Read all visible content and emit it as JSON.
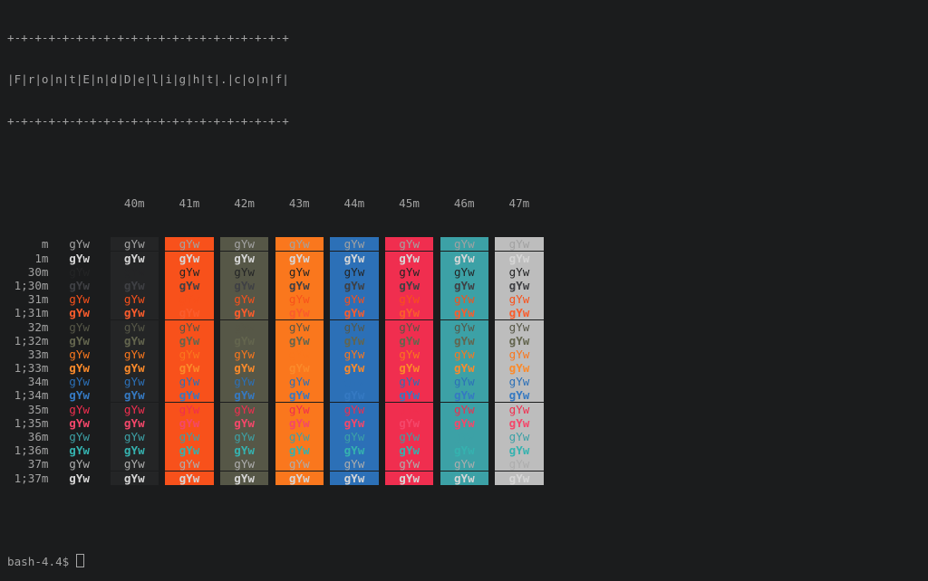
{
  "terminal": {
    "header": {
      "border": "+-+-+-+-+-+-+-+-+-+-+-+-+-+-+-+-+-+-+-+-+",
      "title_line": "|F|r|o|n|t|E|n|d|D|e|l|i|g|h|t|.|c|o|n|f|"
    },
    "col_headers": [
      "40m",
      "41m",
      "42m",
      "43m",
      "44m",
      "45m",
      "46m",
      "47m"
    ],
    "cell_text": "gYw",
    "rows": [
      {
        "label": "m",
        "fg": "default",
        "bold": false
      },
      {
        "label": "1m",
        "fg": "default_bold",
        "bold": true
      },
      {
        "label": "30m",
        "fg": "black",
        "bold": false
      },
      {
        "label": "1;30m",
        "fg": "bright_black",
        "bold": true
      },
      {
        "label": "31m",
        "fg": "red",
        "bold": false
      },
      {
        "label": "1;31m",
        "fg": "bright_red",
        "bold": true
      },
      {
        "label": "32m",
        "fg": "green",
        "bold": false
      },
      {
        "label": "1;32m",
        "fg": "bright_green",
        "bold": true
      },
      {
        "label": "33m",
        "fg": "yellow",
        "bold": false
      },
      {
        "label": "1;33m",
        "fg": "bright_yellow",
        "bold": true
      },
      {
        "label": "34m",
        "fg": "blue",
        "bold": false
      },
      {
        "label": "1;34m",
        "fg": "bright_blue",
        "bold": true
      },
      {
        "label": "35m",
        "fg": "magenta",
        "bold": false
      },
      {
        "label": "1;35m",
        "fg": "bright_magenta",
        "bold": true
      },
      {
        "label": "36m",
        "fg": "cyan",
        "bold": false
      },
      {
        "label": "1;36m",
        "fg": "bright_cyan",
        "bold": true
      },
      {
        "label": "37m",
        "fg": "white",
        "bold": false
      },
      {
        "label": "1;37m",
        "fg": "bright_white",
        "bold": true
      }
    ],
    "prompt": "bash-4.4$ ",
    "colors": {
      "terminal_background": "#1b1c1d",
      "label_foreground": "#a2a2a2",
      "foreground": {
        "default": "#a2a2a2",
        "default_bold": "#d6d6d6",
        "black": "#242526",
        "bright_black": "#3f4044",
        "red": "#f8511b",
        "bright_red": "#fa5c2c",
        "green": "#565747",
        "bright_green": "#63654e",
        "yellow": "#fa771d",
        "bright_yellow": "#fb8a2a",
        "blue": "#2c70b7",
        "bright_blue": "#3579c2",
        "magenta": "#f02e4f",
        "bright_magenta": "#f4476a",
        "cyan": "#3ca1a6",
        "bright_cyan": "#35b2af",
        "white": "#adadad",
        "bright_white": "#d6d6d6"
      },
      "backgrounds": {
        "40m": "#242526",
        "41m": "#f8511b",
        "42m": "#565747",
        "43m": "#fa771d",
        "44m": "#2c70b7",
        "45m": "#f02e4f",
        "46m": "#3ca1a6",
        "47m": "#bdbdbd"
      }
    }
  }
}
